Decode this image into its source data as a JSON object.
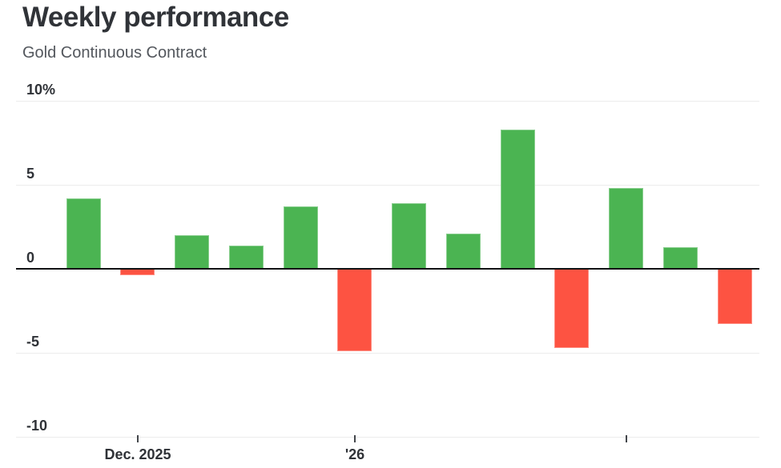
{
  "chart_data": {
    "type": "bar",
    "title": "Weekly performance",
    "subtitle": "Gold Continuous Contract",
    "unit": "%",
    "values": [
      4.2,
      -0.4,
      2.0,
      1.4,
      3.7,
      -4.9,
      3.9,
      2.1,
      8.3,
      -4.7,
      4.8,
      1.3,
      -3.3
    ],
    "ylim": [
      -10,
      10
    ],
    "y_ticks": [
      {
        "value": 10,
        "label": "10%"
      },
      {
        "value": 5,
        "label": "5"
      },
      {
        "value": 0,
        "label": "0"
      },
      {
        "value": -5,
        "label": "-5"
      },
      {
        "value": -10,
        "label": "-10"
      }
    ],
    "x_ticks": [
      {
        "bar_index": 1,
        "label": "Dec. 2025"
      },
      {
        "bar_index": 5,
        "label": "'26"
      },
      {
        "bar_index": 10,
        "label": ""
      }
    ],
    "grid": true,
    "legend": false,
    "colors": {
      "positive": "#4bb452",
      "negative": "#fd5342",
      "grid": "#ececec",
      "zero_line": "#111214",
      "axis_text": "#2f3237",
      "title_text": "#303338",
      "subtitle_text": "#53575d"
    }
  }
}
